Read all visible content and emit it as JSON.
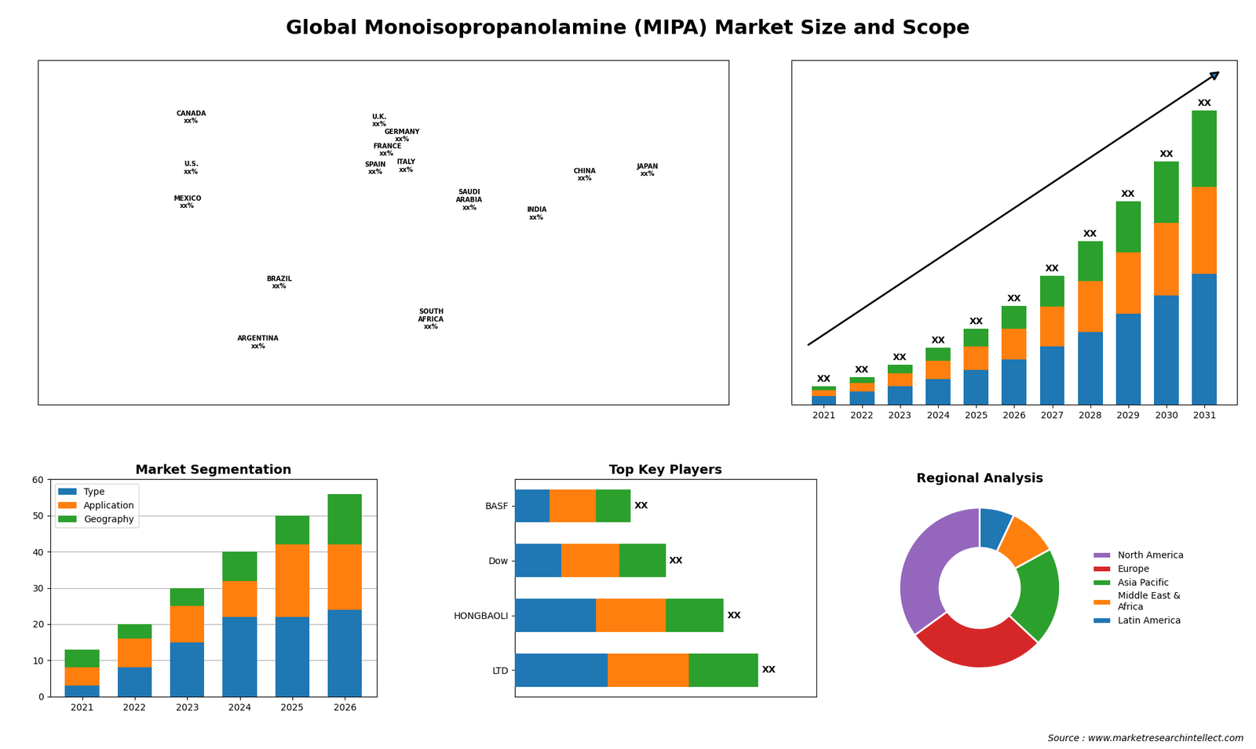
{
  "title": "Global Monoisopropanolamine (MIPA) Market Size and Scope",
  "annotations": [
    "Source : www.marketresearchintellect.com"
  ],
  "chart_data": [
    {
      "type": "map",
      "labels": [
        "CANADA\nxx%",
        "U.S.\nxx%",
        "MEXICO\nxx%",
        "BRAZIL\nxx%",
        "ARGENTINA\nxx%",
        "U.K.\nxx%",
        "FRANCE\nxx%",
        "SPAIN\nxx%",
        "GERMANY\nxx%",
        "ITALY\nxx%",
        "SAUDI\nARABIA\nxx%",
        "SOUTH\nAFRICA\nxx%",
        "CHINA\nxx%",
        "INDIA\nxx%",
        "JAPAN\nxx%"
      ],
      "x": [
        -100,
        -100,
        -102,
        -54,
        -65,
        -2,
        2,
        -4,
        10,
        12,
        45,
        25,
        105,
        80,
        138
      ],
      "y": [
        60,
        38,
        23,
        -12,
        -38,
        54,
        46,
        40,
        51,
        42,
        24,
        -28,
        35,
        18,
        37
      ],
      "xlim": [
        -180,
        180
      ],
      "ylim": [
        -65,
        85
      ],
      "tick_labels": false
    },
    {
      "type": "bar",
      "stacked": true,
      "categories": [
        "2021",
        "2022",
        "2023",
        "2024",
        "2025",
        "2026",
        "2027",
        "2028",
        "2029",
        "2030",
        "2031"
      ],
      "series": [
        {
          "values": [
            1.2,
            1.8,
            2.5,
            3.5,
            4.8,
            6.2,
            8.0,
            10.0,
            12.5,
            15.0,
            18.0
          ]
        },
        {
          "values": [
            0.8,
            1.2,
            1.8,
            2.5,
            3.2,
            4.2,
            5.5,
            7.0,
            8.5,
            10.0,
            12.0
          ]
        },
        {
          "values": [
            0.5,
            0.8,
            1.2,
            1.8,
            2.4,
            3.2,
            4.2,
            5.5,
            7.0,
            8.5,
            10.5
          ]
        }
      ],
      "ylim": [
        0,
        47.5
      ],
      "tick_labels": "x",
      "annotations": [
        "XX",
        "XX",
        "XX",
        "XX",
        "XX",
        "XX",
        "XX",
        "XX",
        "XX",
        "XX",
        "XX"
      ]
    },
    {
      "type": "bar",
      "stacked": true,
      "title": "Market Segmentation",
      "categories": [
        "2021",
        "2022",
        "2023",
        "2024",
        "2025",
        "2026"
      ],
      "series": [
        {
          "name": "Type",
          "values": [
            3,
            8,
            15,
            22,
            22,
            24
          ]
        },
        {
          "name": "Application",
          "values": [
            5,
            8,
            10,
            10,
            20,
            18
          ]
        },
        {
          "name": "Geography",
          "values": [
            5,
            4,
            5,
            8,
            8,
            14
          ]
        }
      ],
      "ylim": [
        0,
        60
      ],
      "yticks": [
        0,
        10,
        20,
        30,
        40,
        50,
        60
      ],
      "grid": true,
      "legend": "upper left"
    },
    {
      "type": "bar",
      "stacked": true,
      "orientation": "horizontal",
      "title": "Top Key Players",
      "categories": [
        "LTD",
        "HONGBAOLI",
        "Dow",
        "BASF"
      ],
      "series": [
        {
          "values": [
            4.0,
            3.5,
            2.0,
            1.5
          ]
        },
        {
          "values": [
            3.5,
            3.0,
            2.5,
            2.0
          ]
        },
        {
          "values": [
            3.0,
            2.5,
            2.0,
            1.5
          ]
        }
      ],
      "xlim": [
        0,
        13
      ],
      "tick_labels": "y",
      "annotations": [
        "XX",
        "XX",
        "XX",
        "XX"
      ]
    },
    {
      "type": "pie",
      "title": "Regional Analysis",
      "categories": [
        "Latin America",
        "Middle East &\nAfrica",
        "Asia Pacific",
        "Europe",
        "North America"
      ],
      "values": [
        7,
        10,
        20,
        28,
        35
      ],
      "legend": "center left"
    }
  ]
}
